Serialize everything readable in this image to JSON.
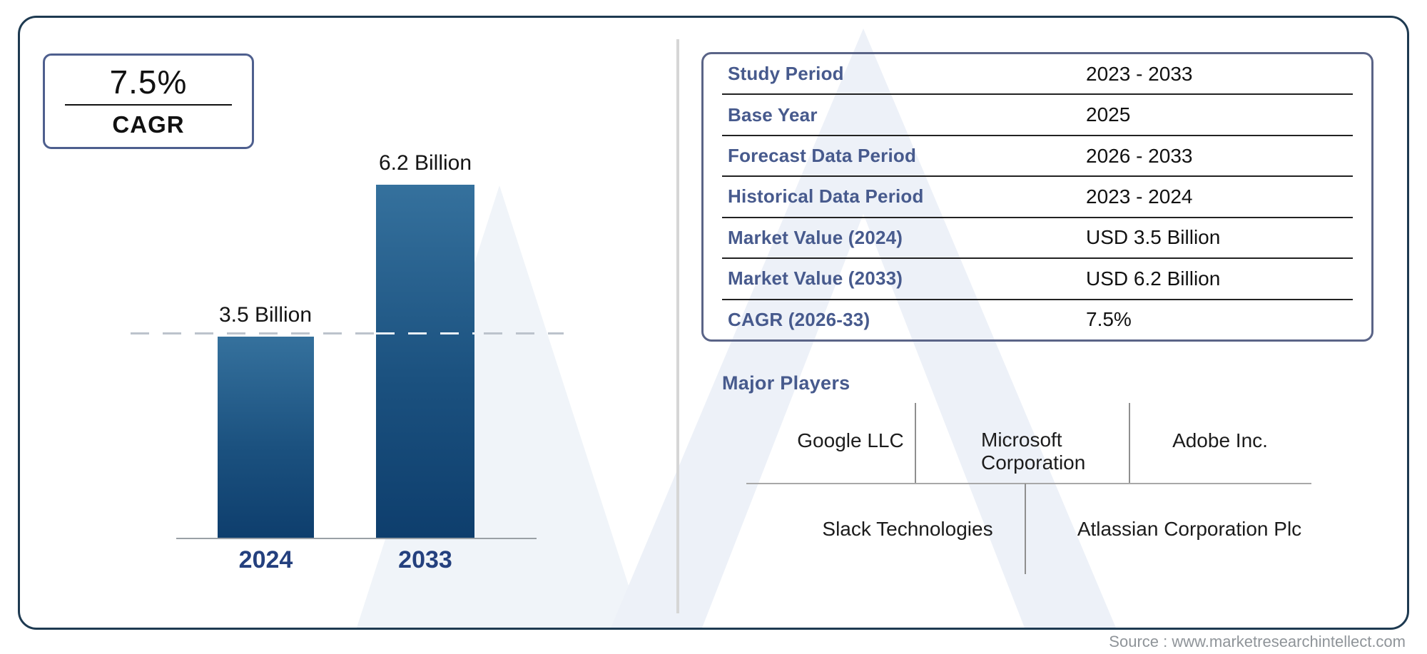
{
  "cagr_badge": {
    "value": "7.5%",
    "label": "CAGR"
  },
  "chart_data": {
    "type": "bar",
    "title": "",
    "categories": [
      "2024",
      "2033"
    ],
    "values": [
      3.5,
      6.2
    ],
    "value_labels": [
      "3.5 Billion",
      "6.2 Billion"
    ],
    "unit": "USD Billion",
    "ylim": [
      0,
      6.2
    ],
    "reference_line_value": 3.5,
    "grid": false,
    "bar_color_top": "#35719d",
    "bar_color_bottom": "#0e3e6d"
  },
  "info_table": {
    "rows": [
      {
        "label": "Study Period",
        "value": "2023 - 2033"
      },
      {
        "label": "Base Year",
        "value": "2025"
      },
      {
        "label": "Forecast Data Period",
        "value": "2026 - 2033"
      },
      {
        "label": "Historical Data Period",
        "value": "2023 - 2024"
      },
      {
        "label": "Market Value (2024)",
        "value": "USD 3.5 Billion"
      },
      {
        "label": "Market Value (2033)",
        "value": "USD 6.2 Billion"
      },
      {
        "label": "CAGR (2026-33)",
        "value": "7.5%"
      }
    ]
  },
  "major_players": {
    "heading": "Major Players",
    "row1": [
      "Google LLC",
      "Microsoft Corporation",
      "Adobe Inc."
    ],
    "row2": [
      "Slack Technologies",
      "Atlassian Corporation Plc"
    ]
  },
  "source": {
    "text": "Source : www.marketresearchintellect.com"
  },
  "colors": {
    "frame_border": "#1e3a51",
    "badge_border": "#4e5f8e",
    "panel_border": "#5a6487",
    "label_accent": "#475a8d",
    "year_label": "#24407e",
    "bar_top": "#35719d",
    "bar_bottom": "#0e3e6d"
  }
}
